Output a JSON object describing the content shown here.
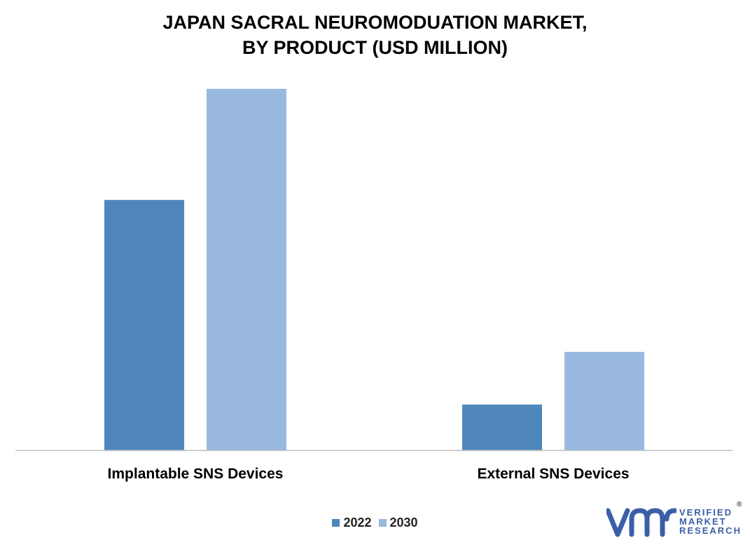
{
  "title": {
    "line1": "JAPAN SACRAL NEUROMODUATION MARKET,",
    "line2": "BY PRODUCT (USD MILLION)"
  },
  "chart_data": {
    "type": "bar",
    "categories": [
      "Implantable SNS Devices",
      "External SNS Devices"
    ],
    "series": [
      {
        "name": "2022",
        "color": "#4f87bb",
        "values": [
          300,
          55
        ]
      },
      {
        "name": "2030",
        "color": "#98b8e0",
        "values": [
          433,
          118
        ]
      }
    ],
    "ylim": [
      0,
      500
    ],
    "grid": false,
    "legend": "bottom-center",
    "xlabel": "",
    "ylabel": ""
  },
  "legend": {
    "items": [
      {
        "label": "2022",
        "color": "#4f87bb"
      },
      {
        "label": "2030",
        "color": "#98b8e0"
      }
    ]
  },
  "logo": {
    "line1": "VERIFIED",
    "line2": "MARKET",
    "line3": "RESEARCH",
    "reg": "®",
    "color": "#3a5fa8"
  }
}
